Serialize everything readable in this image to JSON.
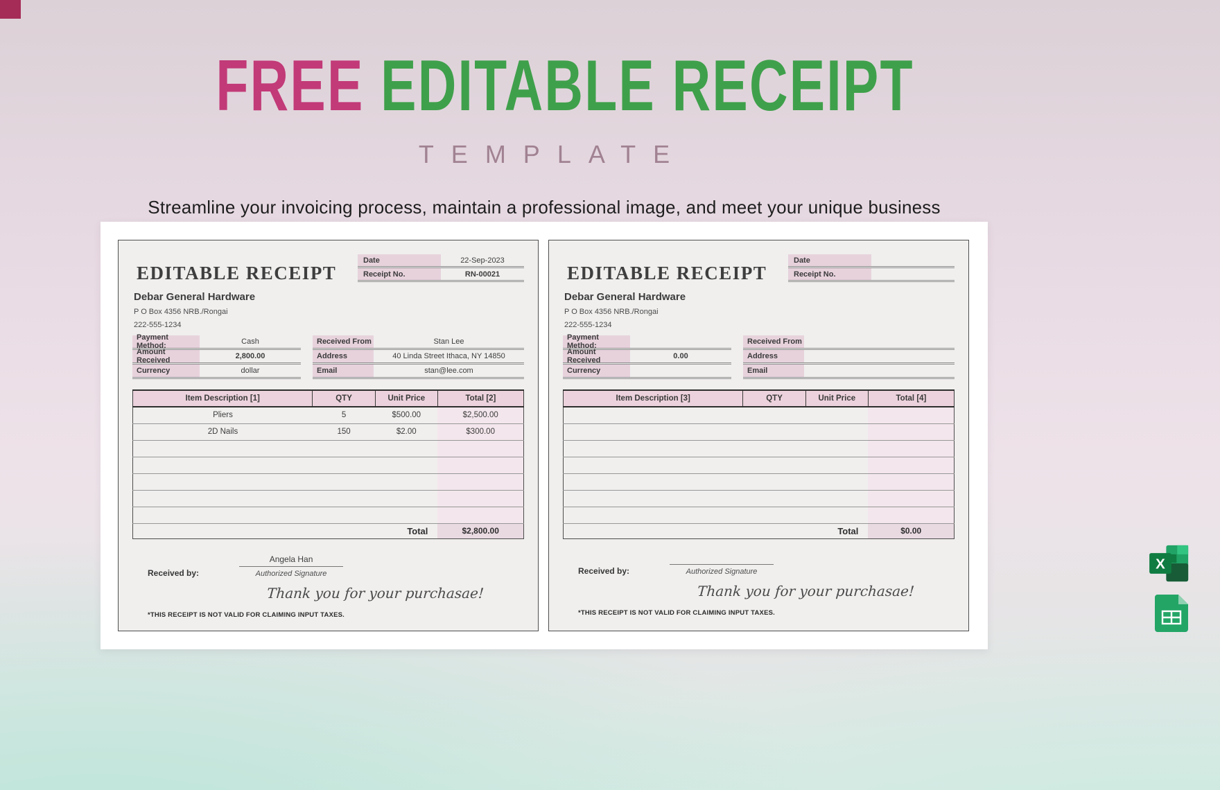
{
  "hero": {
    "title_free": "FREE",
    "title_rest": " EDITABLE RECEIPT",
    "subtitle": "TEMPLATE",
    "tagline": "Streamline your invoicing process, maintain a professional image, and meet your unique business requirements.",
    "colors": {
      "free": "#c23a78",
      "rest": "#3fa04b",
      "subtitle": "#a18292"
    }
  },
  "icons": {
    "excel": "excel-app",
    "sheets": "google-sheets-app"
  },
  "receipts": [
    {
      "title": "EDITABLE RECEIPT",
      "meta": {
        "date_label": "Date",
        "date_value": "22-Sep-2023",
        "receipt_no_label": "Receipt No.",
        "receipt_no_value": "RN-00021"
      },
      "company": {
        "name": "Debar General Hardware",
        "address": "P O Box 4356 NRB./Rongai",
        "phone": "222-555-1234"
      },
      "payment": {
        "rows": [
          {
            "label": "Payment Method:",
            "value": "Cash"
          },
          {
            "label": "Amount Received",
            "value": "2,800.00"
          },
          {
            "label": "Currency",
            "value": "dollar"
          }
        ]
      },
      "received": {
        "rows": [
          {
            "label": "Received From",
            "value": "Stan Lee"
          },
          {
            "label": "Address",
            "value": "40 Linda Street Ithaca, NY 14850"
          },
          {
            "label": "Email",
            "value": "stan@lee.com"
          }
        ]
      },
      "table": {
        "headers": [
          "Item Description [1]",
          "QTY",
          "Unit Price",
          "Total [2]"
        ],
        "rows": [
          [
            "Pliers",
            "5",
            "$500.00",
            "$2,500.00"
          ],
          [
            "2D Nails",
            "150",
            "$2.00",
            "$300.00"
          ],
          [
            "",
            "",
            "",
            ""
          ],
          [
            "",
            "",
            "",
            ""
          ],
          [
            "",
            "",
            "",
            ""
          ],
          [
            "",
            "",
            "",
            ""
          ],
          [
            "",
            "",
            "",
            ""
          ]
        ],
        "total_label": "Total",
        "total_value": "$2,800.00"
      },
      "footer": {
        "received_by": "Received by:",
        "signature_name": "Angela Han",
        "signature_caption": "Authorized Signature",
        "thanks": "Thank you for your purchasae!",
        "disclaimer": "*THIS RECEIPT IS NOT VALID FOR CLAIMING INPUT TAXES."
      }
    },
    {
      "title": "EDITABLE RECEIPT",
      "meta": {
        "date_label": "Date",
        "date_value": "",
        "receipt_no_label": "Receipt No.",
        "receipt_no_value": ""
      },
      "company": {
        "name": "Debar General Hardware",
        "address": "P O Box 4356 NRB./Rongai",
        "phone": "222-555-1234"
      },
      "payment": {
        "rows": [
          {
            "label": "Payment Method:",
            "value": ""
          },
          {
            "label": "Amount Received",
            "value": "0.00"
          },
          {
            "label": "Currency",
            "value": ""
          }
        ]
      },
      "received": {
        "rows": [
          {
            "label": "Received From",
            "value": ""
          },
          {
            "label": "Address",
            "value": ""
          },
          {
            "label": "Email",
            "value": ""
          }
        ]
      },
      "table": {
        "headers": [
          "Item Description [3]",
          "QTY",
          "Unit Price",
          "Total [4]"
        ],
        "rows": [
          [
            "",
            "",
            "",
            ""
          ],
          [
            "",
            "",
            "",
            ""
          ],
          [
            "",
            "",
            "",
            ""
          ],
          [
            "",
            "",
            "",
            ""
          ],
          [
            "",
            "",
            "",
            ""
          ],
          [
            "",
            "",
            "",
            ""
          ],
          [
            "",
            "",
            "",
            ""
          ]
        ],
        "total_label": "Total",
        "total_value": "$0.00"
      },
      "footer": {
        "received_by": "Received by:",
        "signature_name": "",
        "signature_caption": "Authorized Signature",
        "thanks": "Thank you for your purchasae!",
        "disclaimer": "*THIS RECEIPT IS NOT VALID FOR CLAIMING INPUT TAXES."
      }
    }
  ]
}
